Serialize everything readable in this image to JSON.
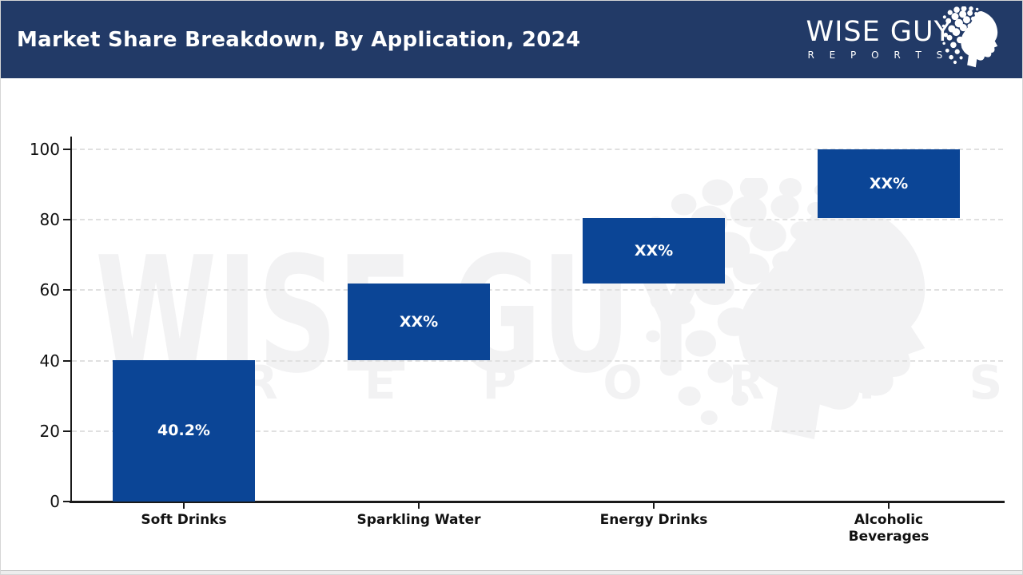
{
  "header": {
    "title": "Market Share Breakdown, By Application, 2024",
    "bg_color": "#223a67",
    "logo": {
      "name": "WISE GUY",
      "subtitle": "R E P O R T S",
      "head_icon": "dotted-head-profile"
    }
  },
  "watermark": {
    "name": "WISE GUY",
    "subtitle": "R E P O R T S",
    "head_icon": "dotted-head-profile",
    "color": "#f2f2f3"
  },
  "chart_data": {
    "type": "bar",
    "subtype": "waterfall",
    "title": "Market Share Breakdown, By Application, 2024",
    "categories": [
      "Soft Drinks",
      "Sparkling Water",
      "Energy Drinks",
      "Alcoholic Beverages"
    ],
    "segments": [
      {
        "category": "Soft Drinks",
        "start": 0,
        "end": 40.2,
        "label": "40.2%"
      },
      {
        "category": "Sparkling Water",
        "start": 40.2,
        "end": 62,
        "label": "XX%"
      },
      {
        "category": "Energy Drinks",
        "start": 62,
        "end": 80.5,
        "label": "XX%"
      },
      {
        "category": "Alcoholic Beverages",
        "start": 80.5,
        "end": 100,
        "label": "XX%"
      }
    ],
    "xlabel": "",
    "ylabel": "",
    "ylim": [
      0,
      104
    ],
    "yticks": [
      0,
      20,
      40,
      60,
      80,
      100
    ],
    "grid": "horizontal-dashed",
    "legend_position": "none",
    "colors": {
      "bar": "#0b4596",
      "bar_label": "#ffffff",
      "axis": "#1a1a1a",
      "grid": "#e0e0e0",
      "tick_text": "#111111"
    }
  }
}
